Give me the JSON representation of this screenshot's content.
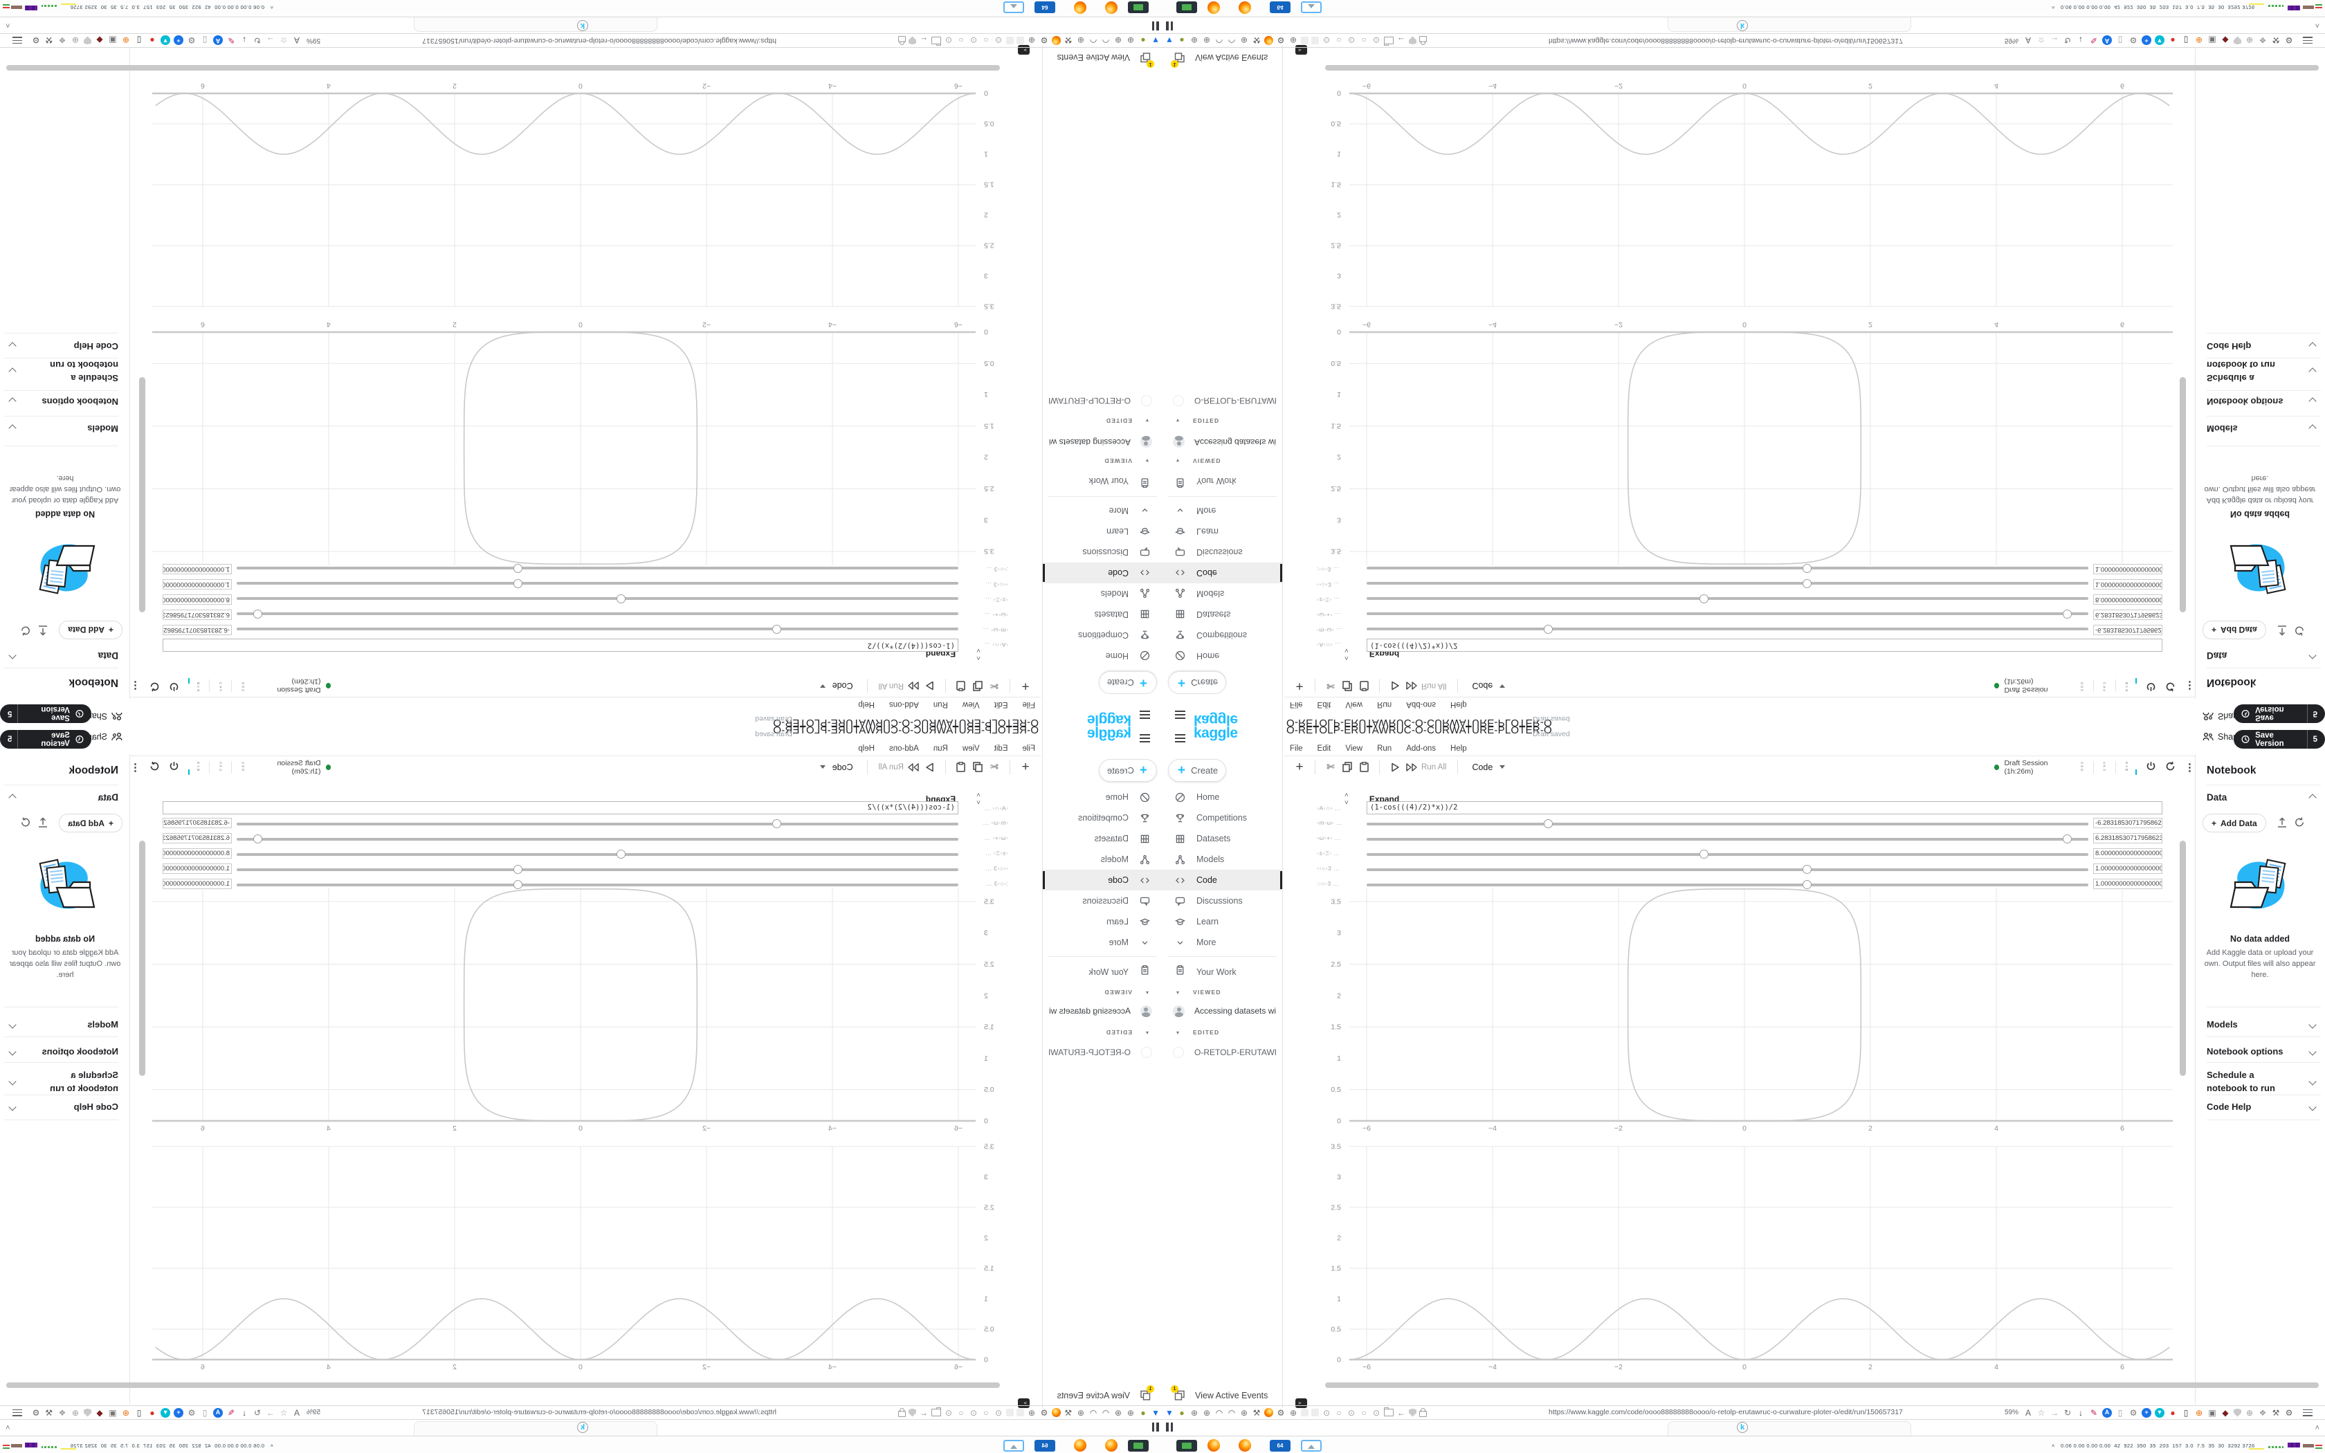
{
  "brand": {
    "kaggle_blue": "#20beff",
    "dark": "#202124",
    "grid": "#e7e7e7",
    "axis": "#c8c8c8",
    "curve": "#c9c9c9",
    "session_green": "#1e8e3e",
    "badge_yellow": "#ffd600"
  },
  "nav": {
    "logo": "kaggle",
    "create_label": "Create",
    "items": [
      {
        "label": "Home",
        "icon": "home-icon"
      },
      {
        "label": "Competitions",
        "icon": "trophy-icon"
      },
      {
        "label": "Datasets",
        "icon": "dataset-grid-icon"
      },
      {
        "label": "Models",
        "icon": "model-nodes-icon"
      },
      {
        "label": "Code",
        "icon": "code-icon"
      },
      {
        "label": "Discussions",
        "icon": "discussion-bubble-icon"
      },
      {
        "label": "Learn",
        "icon": "grad-cap-icon"
      },
      {
        "label": "More",
        "icon": "chevron-down-icon"
      }
    ],
    "active_item": "Code",
    "your_work": "Your Work",
    "viewed_label": "VIEWED",
    "viewed_item": "Accessing datasets wi...",
    "edited_label": "EDITED",
    "edited_item": "O-RETOLP-ERUTAWR...",
    "view_active_events": "View Active Events",
    "active_events_count": "1"
  },
  "editor": {
    "title": "O-RETOLP-ERUTAWRUC-O-CURWATURE-PLOTER-O",
    "draft_status": "Draft saved",
    "menus": [
      "File",
      "Edit",
      "View",
      "Run",
      "Add-ons",
      "Help"
    ],
    "run_all_label": "Run All",
    "cell_type_label": "Code",
    "session_label": "Draft Session (1h:26m)",
    "meters": [
      "HDD",
      "CPU",
      "RAM"
    ],
    "expand_label": "Expand"
  },
  "widgets": {
    "formula_value": "(1-cos(((4)/2)*x))/2",
    "rows": [
      {
        "label": "◦A◦∩◦ ...",
        "type": "text"
      },
      {
        "label": "◦m◦ω◦ ...",
        "type": "slider",
        "pos": 0.251,
        "value": "-6.283185307179586232"
      },
      {
        "label": "◦ω◦+◦ ...",
        "type": "slider",
        "pos": 0.97,
        "value": "6.2831853071795862320"
      },
      {
        "label": "◦±◦Ξ◦ ...",
        "type": "slider",
        "pos": 0.467,
        "value": "8.00000000000000000000"
      },
      {
        "label": "◦◦○◦3 ...",
        "type": "slider",
        "pos": 0.61,
        "value": "1.00000000000000000000"
      },
      {
        "label": ":◦○◦3 ...",
        "type": "slider",
        "pos": 0.61,
        "value": "1.00000000000000000000"
      }
    ]
  },
  "chart_data": [
    {
      "type": "line",
      "title": "",
      "xlabel": "",
      "ylabel": "",
      "x_ticks": [
        -6,
        -4,
        -2,
        0,
        2,
        4,
        6
      ],
      "y_ticks": [
        0,
        0.5,
        1,
        1.5,
        2,
        2.5,
        3,
        3.5
      ],
      "gridline_y": [
        0.5,
        1.5,
        2.5,
        3.5
      ],
      "xlim": [
        -6.27,
        6.8
      ],
      "ylim": [
        0,
        3.72
      ],
      "grid": true,
      "legend": false,
      "series": [
        {
          "name": "closed-curve",
          "shape": "superellipse",
          "cx": 0,
          "cy": 1.85,
          "rx": 1.85,
          "ry": 1.85,
          "n": 4.5
        }
      ]
    },
    {
      "type": "line",
      "title": "",
      "xlabel": "",
      "ylabel": "",
      "x_ticks": [
        -6,
        -4,
        -2,
        0,
        2,
        4,
        6
      ],
      "y_ticks": [
        0,
        0.5,
        1,
        1.5,
        2,
        2.5,
        3,
        3.5
      ],
      "gridline_y": [
        0.5,
        1.5,
        2.5,
        3.5
      ],
      "xlim": [
        -6.27,
        6.8
      ],
      "ylim": [
        0,
        3.5
      ],
      "grid": true,
      "legend": false,
      "series": [
        {
          "name": "curvature",
          "formula": "sin^2(x)",
          "amplitude": 1,
          "period_rad": 3.14159
        }
      ]
    }
  ],
  "rightbar": {
    "share_label": "Share",
    "save_version_label": "Save Version",
    "save_version_count": "5",
    "notebook_heading": "Notebook",
    "data_heading": "Data",
    "add_data_plus": "+",
    "add_data_label": "Add Data",
    "no_data_title": "No data added",
    "no_data_body": "Add Kaggle data or upload your own. Output files will also appear here.",
    "sections": [
      "Models",
      "Notebook options",
      "Schedule a notebook to run",
      "Code Help"
    ]
  },
  "browser": {
    "url": "https://www.kaggle.com/code/oooo88888888oooo/o-retolp-erutawruc-o-curwature-ploter-o/edit/run/150657317",
    "zoom_level": "59%",
    "favicon_letter": "k",
    "console_glyph": ">_",
    "monitor_text": "0.06 0.00 0.00 0.00  42  922  350  35  203  157  3.0  7.5  35  30  3292 3726",
    "left_icons": [
      {
        "name": "funnel-icon",
        "glyph": "▼",
        "color": "#1a73e8"
      },
      {
        "name": "olive-app-icon",
        "glyph": "●",
        "color": "#8a9a2a"
      },
      {
        "name": "globe-icon",
        "glyph": "⊕",
        "color": "#757575"
      },
      {
        "name": "globe-icon",
        "glyph": "⊕",
        "color": "#757575"
      },
      {
        "name": "gauge-icon",
        "glyph": "◠",
        "color": "#616161"
      },
      {
        "name": "gauge-icon",
        "glyph": "◠",
        "color": "#616161"
      },
      {
        "name": "globe-icon",
        "glyph": "⊕",
        "color": "#757575"
      },
      {
        "name": "wrench-icon",
        "glyph": "⚒",
        "color": "#616161"
      },
      {
        "name": "firefox-icon",
        "glyph": "",
        "color": ""
      },
      {
        "name": "gear-icon",
        "glyph": "⚙",
        "color": "#616161"
      },
      {
        "name": "globe-icon",
        "glyph": "⊕",
        "color": "#757575"
      },
      {
        "name": "disabled-ext-icon",
        "glyph": "sq",
        "color": ""
      },
      {
        "name": "disabled-ext-icon",
        "glyph": "sq",
        "color": ""
      },
      {
        "name": "radio-dot-icon",
        "glyph": "⊙",
        "color": "#9e9e9e"
      },
      {
        "name": "radio-icon",
        "glyph": "○",
        "color": "#9e9e9e"
      },
      {
        "name": "radio-dot-icon",
        "glyph": "⊙",
        "color": "#9e9e9e"
      },
      {
        "name": "radio-icon",
        "glyph": "○",
        "color": "#9e9e9e"
      },
      {
        "name": "radio-dot-icon",
        "glyph": "⊙",
        "color": "#9e9e9e"
      },
      {
        "name": "folder-icon",
        "glyph": "folder",
        "color": ""
      },
      {
        "name": "back-arrow-icon",
        "glyph": "←",
        "color": "#757575"
      },
      {
        "name": "shield-icon",
        "glyph": "shield",
        "color": ""
      },
      {
        "name": "lock-icon",
        "glyph": "lock",
        "color": ""
      }
    ],
    "right_icons": [
      {
        "name": "translate-icon",
        "glyph": "A",
        "color": "#5f6368"
      },
      {
        "name": "bookmark-star-icon",
        "glyph": "☆",
        "color": "#9e9e9e"
      },
      {
        "name": "forward-arrow-icon",
        "glyph": "→",
        "color": "#9e9e9e"
      },
      {
        "name": "reload-icon",
        "glyph": "↻",
        "color": "#757575"
      },
      {
        "name": "download-icon",
        "glyph": "↓",
        "color": "#424242"
      },
      {
        "name": "marker-pen-icon",
        "glyph": "✎",
        "color": "#c2185b"
      },
      {
        "name": "translate-ext-icon",
        "glyph": "A",
        "color": "#fff",
        "bg": "#1a73e8"
      },
      {
        "name": "mouse-icon",
        "glyph": "▯",
        "color": "#9e9e9e"
      },
      {
        "name": "gear-ext-icon",
        "glyph": "⚙",
        "color": "#757575"
      },
      {
        "name": "plus-ext-icon",
        "glyph": "+",
        "color": "#fff",
        "bg": "#1a73e8"
      },
      {
        "name": "shield-down-icon",
        "glyph": "▼",
        "color": "#fff",
        "bg": "#00bcd4"
      },
      {
        "name": "ice-red-icon",
        "glyph": "●",
        "color": "#d93025"
      },
      {
        "name": "trash-icon",
        "glyph": "▯",
        "color": "#424242"
      },
      {
        "name": "globe-orange-icon",
        "glyph": "⊕",
        "color": "#e8710a"
      },
      {
        "name": "box-trash-icon",
        "glyph": "▣",
        "color": "#757575"
      },
      {
        "name": "ublock-icon",
        "glyph": "◆",
        "color": "#7a1f1f"
      },
      {
        "name": "shield-grey-icon",
        "glyph": "shield",
        "color": ""
      },
      {
        "name": "globe-grey-icon",
        "glyph": "⊕",
        "color": "#9e9e9e"
      },
      {
        "name": "puzzle-icon",
        "glyph": "❖",
        "color": "#9e9e9e"
      },
      {
        "name": "wrench2-icon",
        "glyph": "⚒",
        "color": "#616161"
      },
      {
        "name": "gear2-icon",
        "glyph": "⚙",
        "color": "#616161"
      }
    ],
    "taskbar_apps": [
      "terminal-app-icon",
      "firefox-app-icon",
      "firefox-app-icon",
      "floppy64-app-icon",
      "screenshot-app-icon"
    ],
    "floppy_label": "64"
  }
}
